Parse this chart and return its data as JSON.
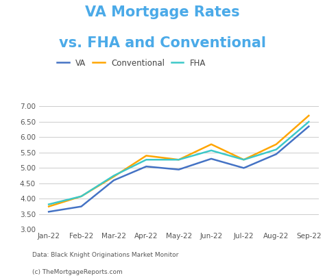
{
  "title_line1": "VA Mortgage Rates",
  "title_line2": "vs. FHA and Conventional",
  "title_color": "#4BAAE8",
  "title_fontsize": 15,
  "title_fontweight": "bold",
  "x_labels": [
    "Jan-22",
    "Feb-22",
    "Mar-22",
    "Apr-22",
    "May-22",
    "Jun-22",
    "Jul-22",
    "Aug-22",
    "Sep-22"
  ],
  "VA": [
    3.58,
    3.75,
    4.6,
    5.05,
    4.95,
    5.3,
    5.0,
    5.45,
    6.35
  ],
  "Conventional": [
    3.75,
    4.08,
    4.72,
    5.4,
    5.27,
    5.77,
    5.27,
    5.77,
    6.7
  ],
  "FHA": [
    3.82,
    4.08,
    4.75,
    5.27,
    5.27,
    5.57,
    5.27,
    5.6,
    6.5
  ],
  "va_color": "#4472c4",
  "conventional_color": "#FFA500",
  "fha_color": "#3CC8C8",
  "ylim": [
    3.0,
    7.0
  ],
  "yticks": [
    3.0,
    3.5,
    4.0,
    4.5,
    5.0,
    5.5,
    6.0,
    6.5,
    7.0
  ],
  "background_color": "#ffffff",
  "grid_color": "#cccccc",
  "tick_color": "#555555",
  "footnote1": "Data: Black Knight Originations Market Monitor",
  "footnote2": "(c) TheMortgageReports.com",
  "line_width": 1.8,
  "legend_fontsize": 8.5,
  "tick_fontsize": 7.5
}
